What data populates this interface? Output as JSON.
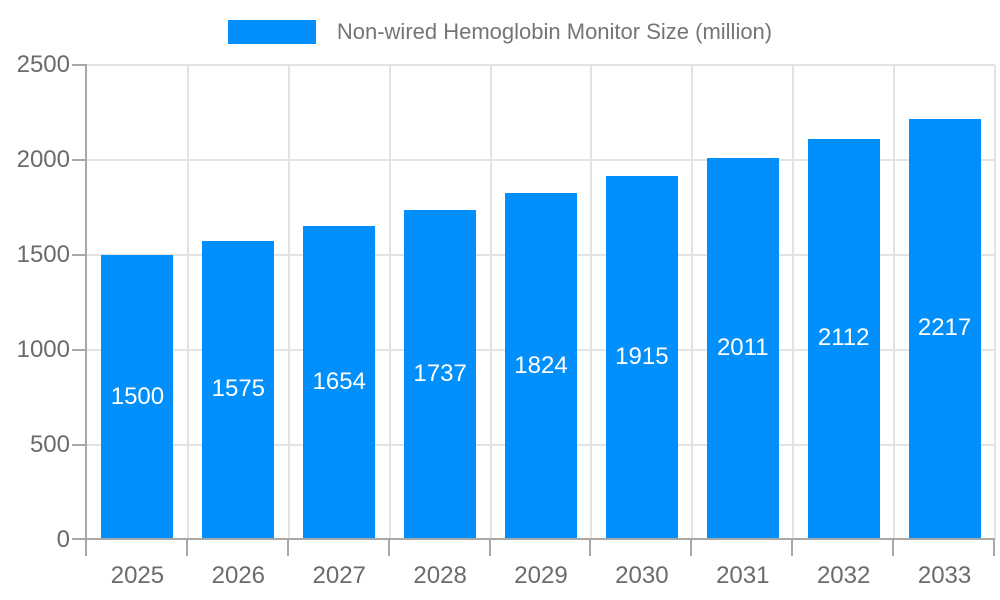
{
  "chart_data": {
    "type": "bar",
    "title": "Non-wired Hemoglobin Monitor Size (million)",
    "categories": [
      "2025",
      "2026",
      "2027",
      "2028",
      "2029",
      "2030",
      "2031",
      "2032",
      "2033"
    ],
    "values": [
      1500,
      1575,
      1654,
      1737,
      1824,
      1915,
      2011,
      2112,
      2217
    ],
    "xlabel": "",
    "ylabel": "",
    "ylim": [
      0,
      2500
    ],
    "yticks": [
      0,
      500,
      1000,
      1500,
      2000,
      2500
    ],
    "grid": "on",
    "legend_position": "top-center",
    "bar_color": "#008FFB",
    "bar_value_label_color": "#ffffff"
  },
  "colors": {
    "axis": "#a8a8a8",
    "gridline": "#e3e3e3",
    "tick_text": "#6b6b6b",
    "legend_text": "#757575",
    "background": "#ffffff"
  }
}
